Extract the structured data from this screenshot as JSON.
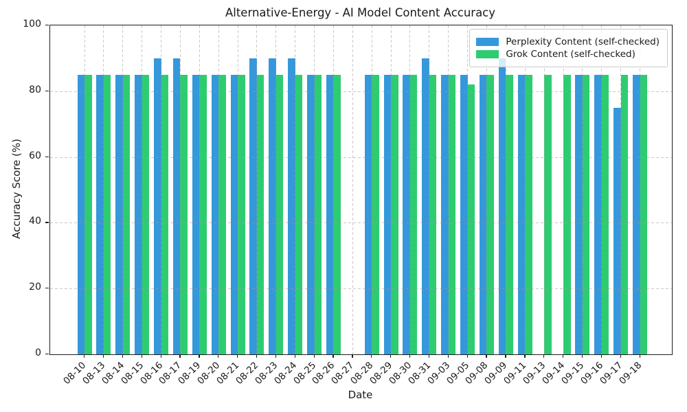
{
  "chart_data": {
    "type": "bar",
    "title": "Alternative-Energy - AI Model Content Accuracy",
    "xlabel": "Date",
    "ylabel": "Accuracy Score (%)",
    "ylim": [
      0,
      100
    ],
    "yticks": [
      0,
      20,
      40,
      60,
      80,
      100
    ],
    "grid": true,
    "grid_style": "dashed",
    "legend_position": "upper right",
    "categories": [
      "08-10",
      "08-13",
      "08-14",
      "08-15",
      "08-16",
      "08-17",
      "08-19",
      "08-20",
      "08-21",
      "08-22",
      "08-23",
      "08-24",
      "08-25",
      "08-26",
      "08-27",
      "08-28",
      "08-29",
      "08-30",
      "08-31",
      "09-03",
      "09-05",
      "09-08",
      "09-09",
      "09-11",
      "09-13",
      "09-14",
      "09-15",
      "09-16",
      "09-17",
      "09-18"
    ],
    "series": [
      {
        "name": "Perplexity Content (self-checked)",
        "color": "#3498db",
        "values": [
          85,
          85,
          85,
          85,
          90,
          90,
          85,
          85,
          85,
          90,
          90,
          90,
          85,
          85,
          0,
          85,
          85,
          85,
          90,
          85,
          85,
          85,
          90,
          85,
          0,
          0,
          85,
          85,
          75,
          85
        ]
      },
      {
        "name": "Grok Content (self-checked)",
        "color": "#2ecc71",
        "values": [
          85,
          85,
          85,
          85,
          85,
          85,
          85,
          85,
          85,
          85,
          85,
          85,
          85,
          85,
          0,
          85,
          85,
          85,
          85,
          85,
          82,
          85,
          85,
          85,
          85,
          85,
          85,
          85,
          85,
          85
        ]
      }
    ]
  }
}
